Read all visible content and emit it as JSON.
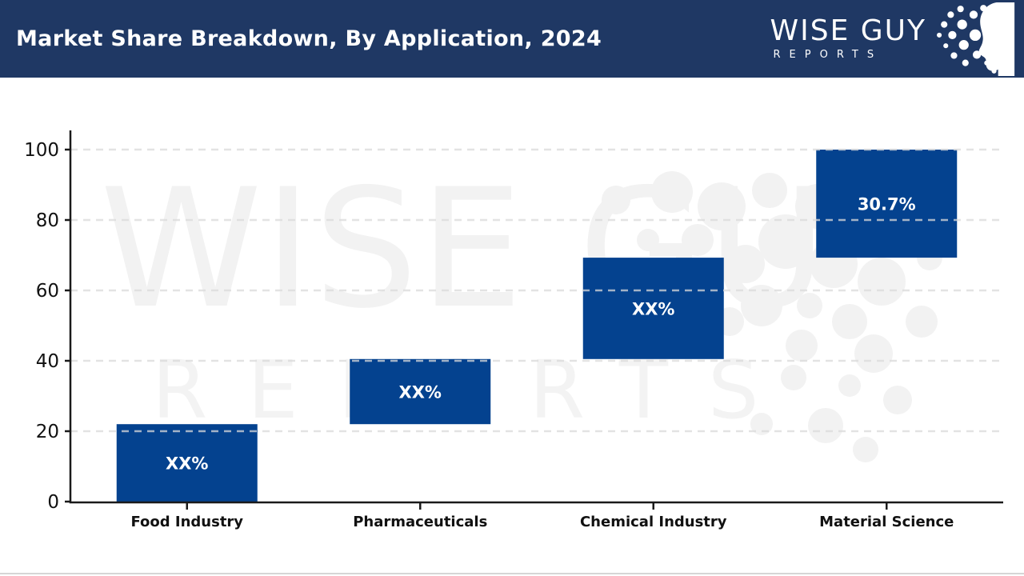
{
  "header": {
    "title": "Market Share Breakdown, By Application, 2024",
    "logo": {
      "line1": "WISE GUY",
      "line2": "REPORTS"
    }
  },
  "icons": {
    "logo_face": "dotted-face-profile"
  },
  "watermark": {
    "line1": "WISE GU",
    "line2": "REPORTS"
  },
  "colors": {
    "header_bg": "#1f3864",
    "bar_fill": "#04428f",
    "bar_label": "#ffffff",
    "axis": "#1a1a1a",
    "tick_label": "#111111",
    "gridline": "#d9d9d9",
    "watermark": "#f2f2f2",
    "background": "#ffffff"
  },
  "chart_data": {
    "type": "bar",
    "subtype": "floating-waterfall",
    "title": "Market Share Breakdown, By Application, 2024",
    "xlabel": "",
    "ylabel": "",
    "categories": [
      "Food Industry",
      "Pharmaceuticals",
      "Chemical Industry",
      "Material Science"
    ],
    "segments": [
      {
        "category": "Food Industry",
        "start": 0,
        "end": 22,
        "value": 22,
        "label": "XX%"
      },
      {
        "category": "Pharmaceuticals",
        "start": 22,
        "end": 40.5,
        "value": 18.5,
        "label": "XX%"
      },
      {
        "category": "Chemical Industry",
        "start": 40.5,
        "end": 69.3,
        "value": 28.8,
        "label": "XX%"
      },
      {
        "category": "Material Science",
        "start": 69.3,
        "end": 100,
        "value": 30.7,
        "label": "30.7%"
      }
    ],
    "yticks": [
      0,
      20,
      40,
      60,
      80,
      100
    ],
    "ylim": [
      0,
      105
    ],
    "grid": "horizontal-dashed",
    "legend": "none"
  }
}
